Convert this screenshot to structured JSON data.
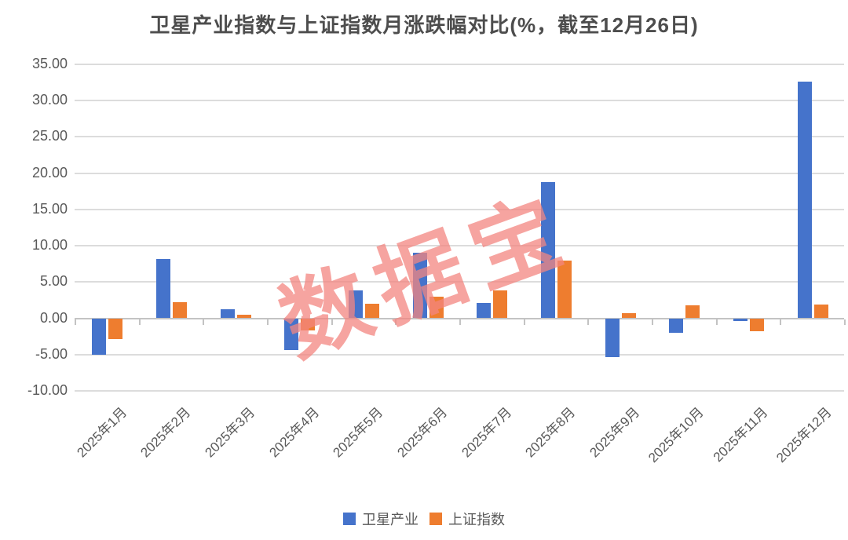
{
  "title": "卫星产业指数与上证指数月涨跌幅对比(%，截至12月26日)",
  "watermark": {
    "text": "数据宝",
    "color": "rgba(243,134,128,0.75)"
  },
  "axis": {
    "yticks_labels": [
      "35.00",
      "30.00",
      "25.00",
      "20.00",
      "15.00",
      "10.00",
      "5.00",
      "0.00",
      "-5.00",
      "-10.00"
    ]
  },
  "chart_data": {
    "type": "bar",
    "title": "卫星产业指数与上证指数月涨跌幅对比(%，截至12月26日)",
    "categories": [
      "2025年1月",
      "2025年2月",
      "2025年3月",
      "2025年4月",
      "2025年5月",
      "2025年6月",
      "2025年7月",
      "2025年8月",
      "2025年9月",
      "2025年10月",
      "2025年11月",
      "2025年12月"
    ],
    "series": [
      {
        "name": "卫星产业",
        "color": "#4573CB",
        "values": [
          -5.0,
          8.1,
          1.1,
          -4.4,
          3.7,
          8.9,
          2.0,
          18.7,
          -5.3,
          -2.0,
          -0.4,
          32.5
        ]
      },
      {
        "name": "上证指数",
        "color": "#EE7D2F",
        "values": [
          -2.9,
          2.1,
          0.4,
          -1.7,
          1.9,
          2.9,
          3.7,
          7.9,
          0.6,
          1.7,
          -1.8,
          1.8
        ]
      }
    ],
    "xlabel": "",
    "ylabel": "",
    "ylim": [
      -10,
      35
    ],
    "ytick_step": 5,
    "grid": true,
    "legend_position": "bottom"
  }
}
